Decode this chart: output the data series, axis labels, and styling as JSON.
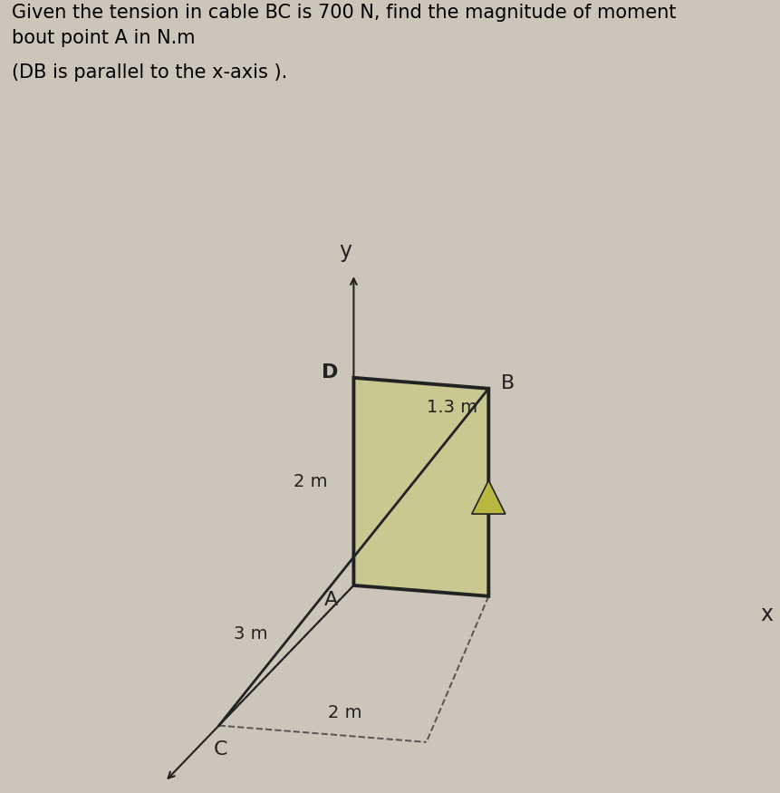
{
  "title_line1": "Given the tension in cable BC is 700 N, find the magnitude of moment",
  "title_line2": "bout point A in N.m",
  "title_line3": "(DB is parallel to the x-axis ).",
  "background_color": "#ccc5ba",
  "text_color": "#000000",
  "title_fontsize": 15.0,
  "subtitle_fontsize": 15.0,
  "rect_color": "#c8c890",
  "triangle_color": "#b8b840",
  "border_color": "#222222",
  "line_color": "#222222",
  "dashed_color": "#555555",
  "figsize": [
    8.61,
    8.75
  ],
  "dpi": 100
}
